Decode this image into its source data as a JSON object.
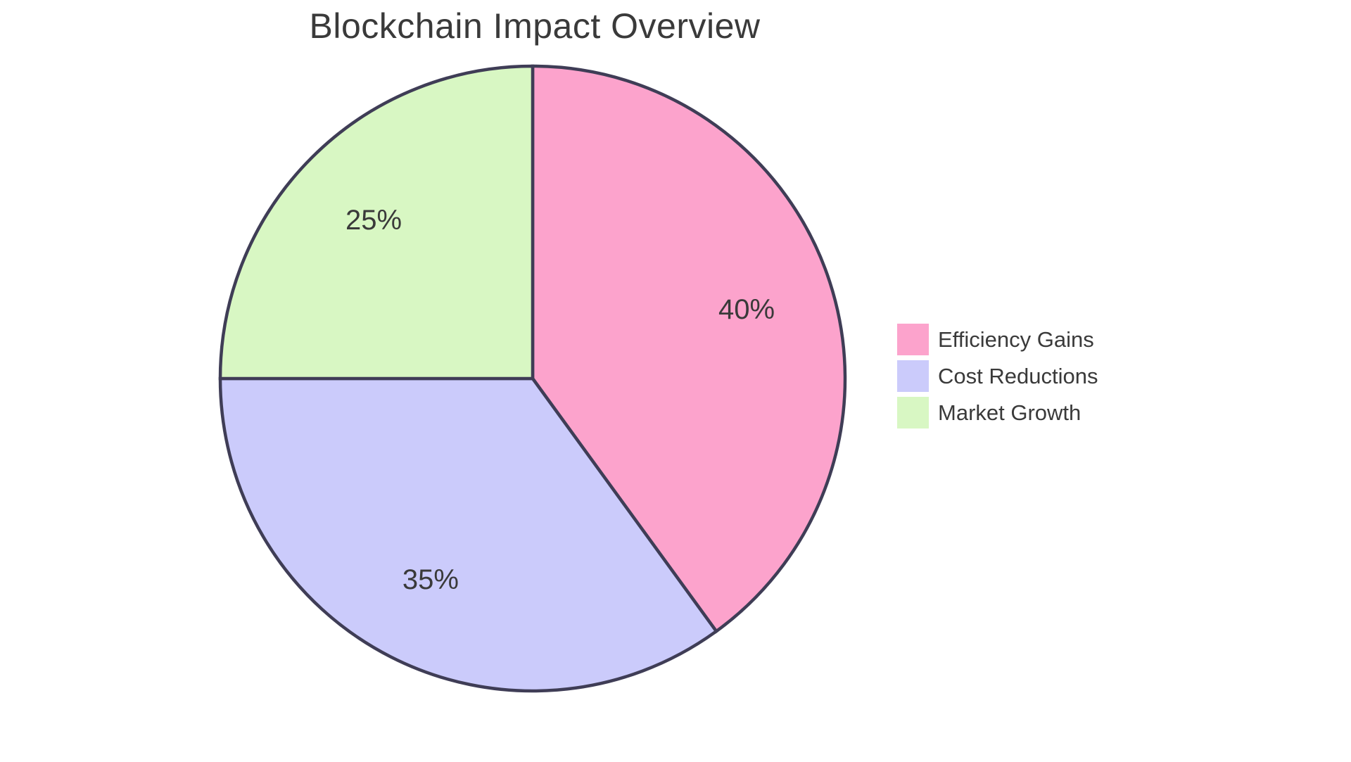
{
  "chart_data": {
    "type": "pie",
    "title": "Blockchain Impact Overview",
    "series": [
      {
        "label": "Efficiency Gains",
        "value": 40,
        "display": "40%",
        "color": "#FCA3CC"
      },
      {
        "label": "Cost Reductions",
        "value": 35,
        "display": "35%",
        "color": "#CBCBFB"
      },
      {
        "label": "Market Growth",
        "value": 25,
        "display": "25%",
        "color": "#D8F7C3"
      }
    ],
    "start_angle_deg": 0,
    "direction": "clockwise",
    "stroke_color": "#3F3D56",
    "stroke_width": 4.5,
    "label_color": "#3A3A3A",
    "label_radius_fraction": 0.72,
    "legend_position": "right",
    "grid": false
  }
}
